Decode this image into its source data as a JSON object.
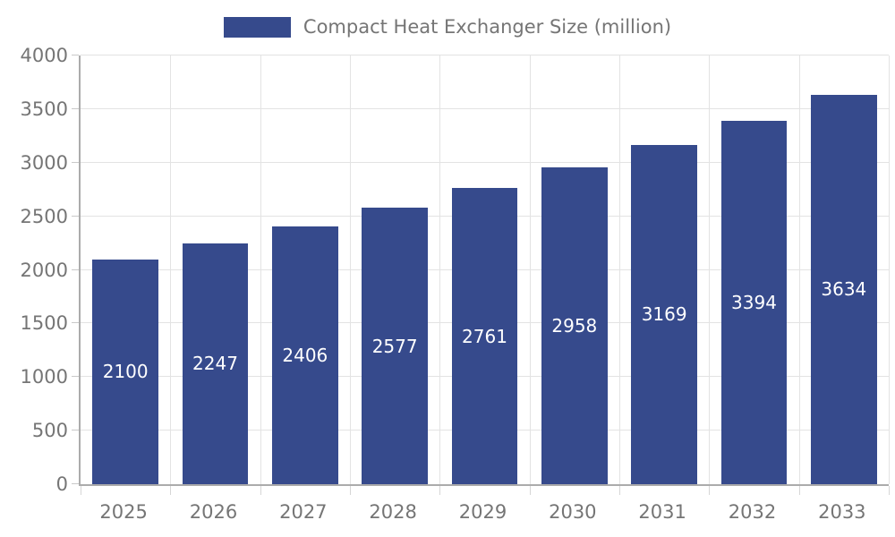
{
  "legend": {
    "label": "Compact Heat Exchanger Size (million)"
  },
  "colors": {
    "bar": "#364A8C",
    "grid_line": "#e3e3e3",
    "axis_line": "#ababab",
    "tick_text": "#757575",
    "value_label": "#ffffff",
    "background": "#ffffff"
  },
  "chart_data": {
    "type": "bar",
    "title": "Compact Heat Exchanger Size (million)",
    "categories": [
      "2025",
      "2026",
      "2027",
      "2028",
      "2029",
      "2030",
      "2031",
      "2032",
      "2033"
    ],
    "values": [
      2100,
      2247,
      2406,
      2577,
      2761,
      2958,
      3169,
      3394,
      3634
    ],
    "xlabel": "",
    "ylabel": "",
    "ylim": [
      0,
      4000
    ],
    "yticks": [
      0,
      500,
      1000,
      1500,
      2000,
      2500,
      3000,
      3500,
      4000
    ],
    "grid": true,
    "legend_position": "top",
    "value_labels": "inside-center",
    "bar_width_fraction": 0.737
  }
}
